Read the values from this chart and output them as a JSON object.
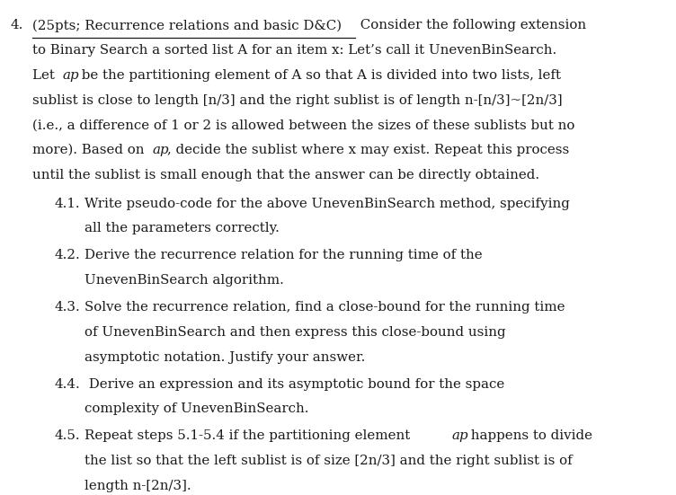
{
  "background_color": "#ffffff",
  "text_color": "#1a1a1a",
  "fig_width": 7.52,
  "fig_height": 5.51,
  "dpi": 100,
  "main_heading_underline": "(25pts; Recurrence relations and basic D&C)",
  "main_heading_rest": " Consider the following extension",
  "body_lines": [
    "to Binary Search a sorted list A for an item x: Let’s call it UnevenBinSearch.",
    "Let {ap} be the partitioning element of A so that A is divided into two lists, left",
    "sublist is close to length [n/3] and the right sublist is of length n-[n/3]~[2n/3]",
    "(i.e., a difference of 1 or 2 is allowed between the sizes of these sublists but no",
    "more). Based on {ap}, decide the sublist where x may exist. Repeat this process",
    "until the sublist is small enough that the answer can be directly obtained."
  ],
  "sub_items": [
    {
      "number": "4.1.",
      "lines": [
        "Write pseudo-code for the above UnevenBinSearch method, specifying",
        "all the parameters correctly."
      ]
    },
    {
      "number": "4.2.",
      "lines": [
        "Derive the recurrence relation for the running time of the",
        "UnevenBinSearch algorithm."
      ]
    },
    {
      "number": "4.3.",
      "lines": [
        "Solve the recurrence relation, find a close-bound for the running time",
        "of UnevenBinSearch and then express this close-bound using",
        "asymptotic notation. Justify your answer."
      ]
    },
    {
      "number": "4.4.",
      "lines": [
        " Derive an expression and its asymptotic bound for the space",
        "complexity of UnevenBinSearch."
      ]
    },
    {
      "number": "4.5.",
      "lines": [
        "Repeat steps 5.1-5.4 if the partitioning element {ap} happens to divide",
        "the list so that the left sublist is of size [2n/3] and the right sublist is of",
        "length n-[2n/3]."
      ]
    }
  ]
}
